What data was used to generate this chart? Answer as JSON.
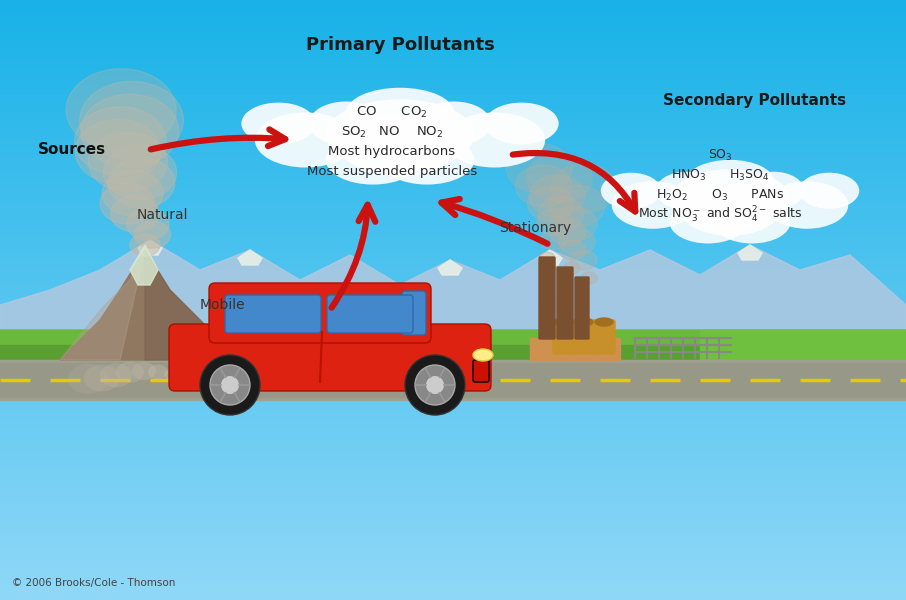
{
  "title": "Primary Pollutants",
  "secondary_title": "Secondary Pollutants",
  "sources_label": "Sources",
  "natural_label": "Natural",
  "stationary_label": "Stationary",
  "mobile_label": "Mobile",
  "copyright": "© 2006 Brooks/Cole - Thomson",
  "sky_top_color": "#18b2e8",
  "sky_mid_color": "#5bc8f0",
  "sky_bot_color": "#90d8f8",
  "ground_top_color": "#6db83a",
  "ground_bot_color": "#8dc84a",
  "road_color": "#a8a898",
  "road_dark_color": "#989888",
  "mountain_color": "#b0c8e0",
  "mountain_snow_color": "#e8eee8",
  "arrow_color": "#cc1111",
  "cloud_color": "#f5f5f5",
  "volcano_color": "#907860",
  "car_red": "#dd2211",
  "car_blue": "#4488cc",
  "smoke_color": "#c0b8a8",
  "factory_dark": "#7a5030",
  "factory_gold": "#c8902a"
}
